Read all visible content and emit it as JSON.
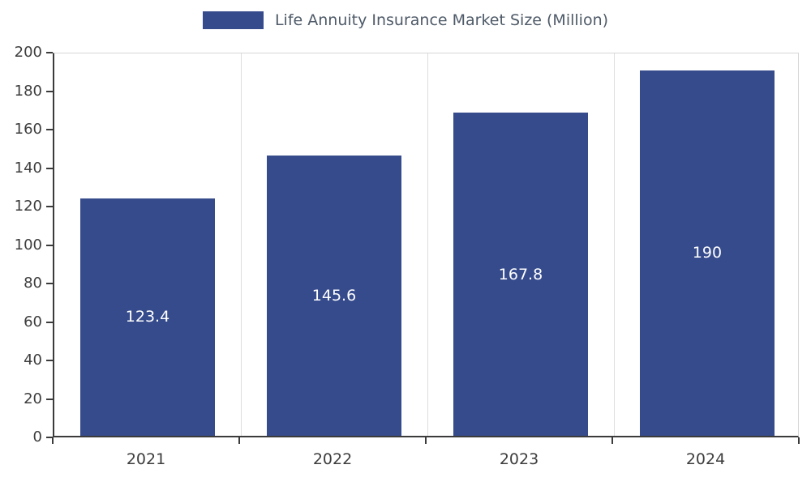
{
  "legend": {
    "label": "Life Annuity Insurance Market Size (Million)",
    "swatch_color": "#364b8c"
  },
  "chart_data": {
    "type": "bar",
    "title": "Life Annuity Insurance Market Size (Million)",
    "categories": [
      "2021",
      "2022",
      "2023",
      "2024"
    ],
    "values": [
      123.4,
      145.6,
      167.8,
      190
    ],
    "value_labels": [
      "123.4",
      "145.6",
      "167.8",
      "190"
    ],
    "xlabel": "",
    "ylabel": "",
    "ylim": [
      0,
      200
    ],
    "yticks": [
      0,
      20,
      40,
      60,
      80,
      100,
      120,
      140,
      160,
      180,
      200
    ],
    "bar_color": "#364b8c",
    "bar_label_color": "#ffffff",
    "grid": "vertical-only",
    "legend_position": "top-center"
  }
}
